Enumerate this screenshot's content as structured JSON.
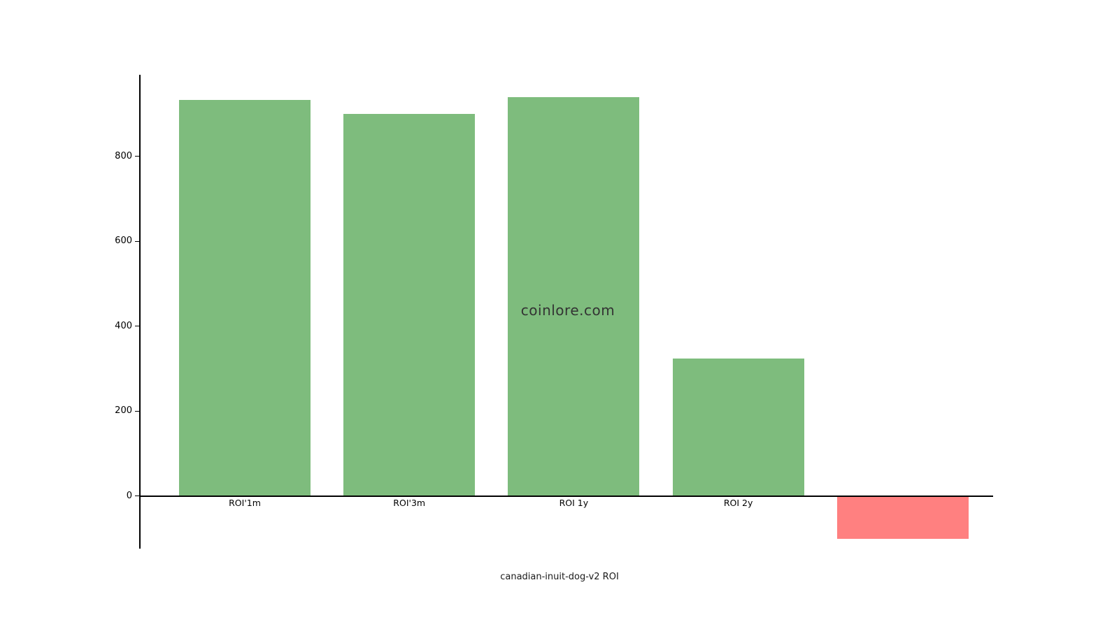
{
  "watermark": {
    "text": "coinlore.com",
    "color": "#333333"
  },
  "title": {
    "text": "canadian-inuit-dog-v2 ROI"
  },
  "chart_data": {
    "type": "bar",
    "title": "canadian-inuit-dog-v2 ROI",
    "categories": [
      "ROI'1m",
      "ROI'3m",
      "ROI 1y",
      "ROI 2y",
      ""
    ],
    "values": [
      932,
      899,
      939,
      322,
      -100
    ],
    "series": [
      {
        "name": "ROI",
        "values": [
          932,
          899,
          939,
          322,
          -100
        ]
      }
    ],
    "positive_color": "#7ebc7d",
    "negative_color": "#ff8080",
    "axis_color": "#000000",
    "tick_label_color": "#000000",
    "xlabel": "",
    "ylabel": "",
    "yticks": [
      0,
      200,
      400,
      600,
      800
    ],
    "ylim": [
      -125,
      991
    ],
    "grid": false,
    "legend": null,
    "annotations": [
      "coinlore.com"
    ]
  }
}
